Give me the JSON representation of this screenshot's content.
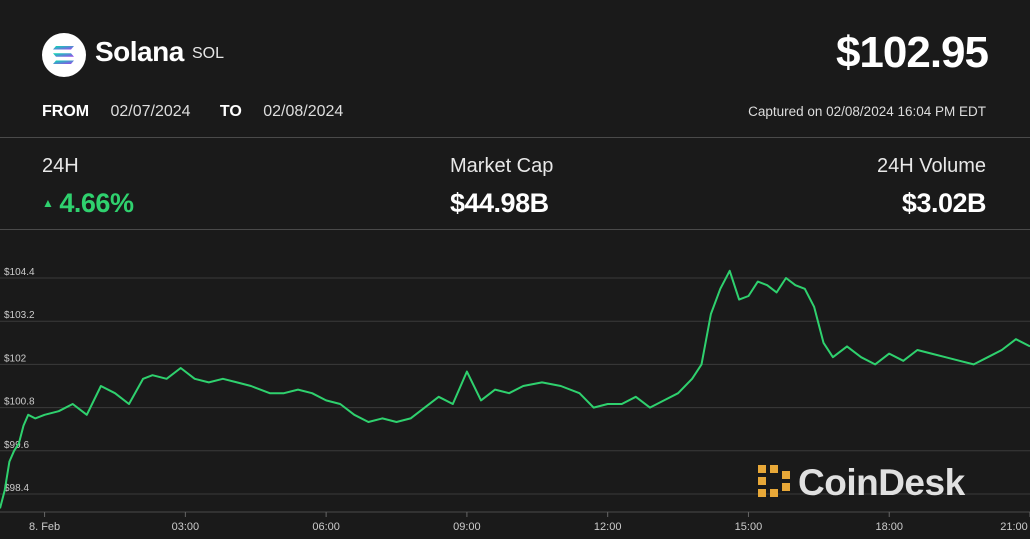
{
  "header": {
    "coin_name": "Solana",
    "coin_symbol": "SOL",
    "price": "$102.95",
    "from_label": "FROM",
    "from_date": "02/07/2024",
    "to_label": "TO",
    "to_date": "02/08/2024",
    "captured": "Captured on 02/08/2024 16:04 PM EDT"
  },
  "stats": {
    "change_label": "24H",
    "change_value": "4.66%",
    "market_cap_label": "Market Cap",
    "market_cap_value": "$44.98B",
    "volume_label": "24H Volume",
    "volume_value": "$3.02B"
  },
  "colors": {
    "background": "#1a1a1a",
    "line": "#2fd16e",
    "up": "#2fd16e",
    "watermark": "#e0e0e0",
    "watermark_accent": "#e8a838"
  },
  "watermark": {
    "text": "CoinDesk"
  },
  "chart_data": {
    "type": "line",
    "title": "",
    "xlabel": "",
    "ylabel": "",
    "ylim": [
      97.9,
      105.4
    ],
    "grid": true,
    "yticks": [
      98.4,
      99.6,
      100.8,
      102,
      103.2,
      104.4
    ],
    "ytick_labels": [
      "$98.4",
      "$99.6",
      "$100.8",
      "$102",
      "$103.2",
      "$104.4"
    ],
    "xlim": [
      -0.95,
      21.0
    ],
    "xticks": [
      0,
      3,
      6,
      9,
      12,
      15,
      18,
      21
    ],
    "xtick_labels": [
      "8. Feb",
      "03:00",
      "06:00",
      "09:00",
      "12:00",
      "15:00",
      "18:00",
      "21:00"
    ],
    "series": [
      {
        "x": [
          -0.95,
          -0.85,
          -0.75,
          -0.65,
          -0.55,
          -0.45,
          -0.35,
          -0.2,
          0,
          0.3,
          0.6,
          0.9,
          1.2,
          1.5,
          1.8,
          2.1,
          2.3,
          2.6,
          2.9,
          3.2,
          3.5,
          3.8,
          4.1,
          4.4,
          4.8,
          5.1,
          5.4,
          5.7,
          6.0,
          6.3,
          6.6,
          6.9,
          7.2,
          7.5,
          7.8,
          8.1,
          8.4,
          8.7,
          9.0,
          9.3,
          9.6,
          9.9,
          10.2,
          10.6,
          11.0,
          11.4,
          11.7,
          12.0,
          12.3,
          12.6,
          12.9,
          13.2,
          13.5,
          13.8,
          14.0,
          14.2,
          14.4,
          14.6,
          14.8,
          15.0,
          15.2,
          15.4,
          15.6,
          15.8,
          16.0,
          16.2,
          16.4,
          16.6,
          16.8,
          17.1,
          17.4,
          17.7,
          18.0,
          18.3,
          18.6,
          18.9,
          19.2,
          19.5,
          19.8,
          20.1,
          20.4,
          20.7,
          21.0
        ],
        "y": [
          98.0,
          98.5,
          99.3,
          99.6,
          99.8,
          100.3,
          100.6,
          100.5,
          100.6,
          100.7,
          100.9,
          100.6,
          101.4,
          101.2,
          100.9,
          101.6,
          101.7,
          101.6,
          101.9,
          101.6,
          101.5,
          101.6,
          101.5,
          101.4,
          101.2,
          101.2,
          101.3,
          101.2,
          101.0,
          100.9,
          100.6,
          100.4,
          100.5,
          100.4,
          100.5,
          100.8,
          101.1,
          100.9,
          101.8,
          101.0,
          101.3,
          101.2,
          101.4,
          101.5,
          101.4,
          101.2,
          100.8,
          100.9,
          100.9,
          101.1,
          100.8,
          101.0,
          101.2,
          101.6,
          102.0,
          103.4,
          104.1,
          104.6,
          103.8,
          103.9,
          104.3,
          104.2,
          104.0,
          104.4,
          104.2,
          104.1,
          103.6,
          102.6,
          102.2,
          102.5,
          102.2,
          102.0,
          102.3,
          102.1,
          102.4,
          102.3,
          102.2,
          102.1,
          102.0,
          102.2,
          102.4,
          102.7,
          102.5
        ]
      }
    ]
  }
}
